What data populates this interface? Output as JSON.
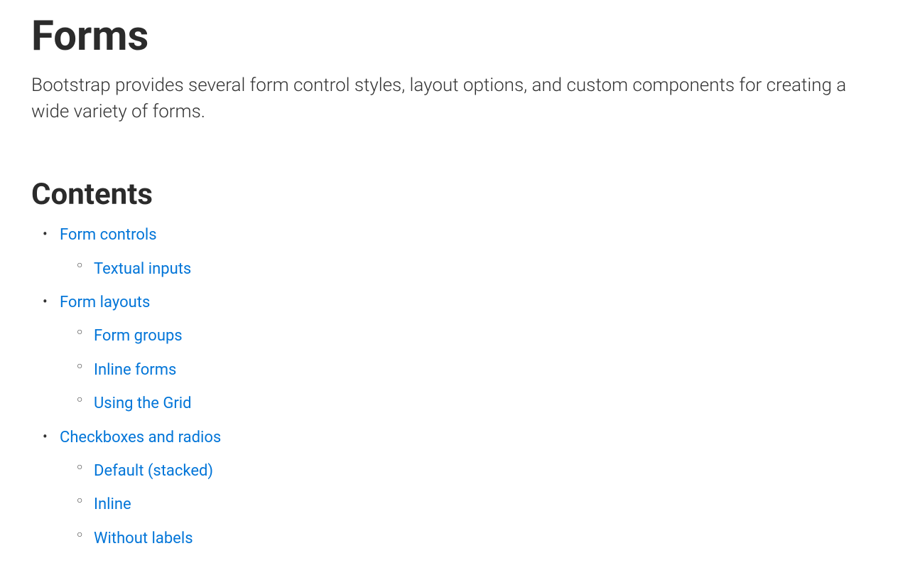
{
  "page": {
    "title": "Forms",
    "lead": "Bootstrap provides several form control styles, layout options, and custom components for creating a wide variety of forms.",
    "contents_heading": "Contents"
  },
  "colors": {
    "link": "#0275d8",
    "text": "#333333",
    "heading": "#2b2b2b",
    "background": "#ffffff"
  },
  "typography": {
    "h1_fontsize": 58,
    "h1_weight": 700,
    "lead_fontsize": 26,
    "lead_weight": 300,
    "h2_fontsize": 42,
    "h2_weight": 700,
    "link_fontsize": 22
  },
  "toc": [
    {
      "label": "Form controls",
      "children": [
        {
          "label": "Textual inputs"
        }
      ]
    },
    {
      "label": "Form layouts",
      "children": [
        {
          "label": "Form groups"
        },
        {
          "label": "Inline forms"
        },
        {
          "label": "Using the Grid"
        }
      ]
    },
    {
      "label": "Checkboxes and radios",
      "children": [
        {
          "label": "Default (stacked)"
        },
        {
          "label": "Inline"
        },
        {
          "label": "Without labels"
        }
      ]
    }
  ]
}
